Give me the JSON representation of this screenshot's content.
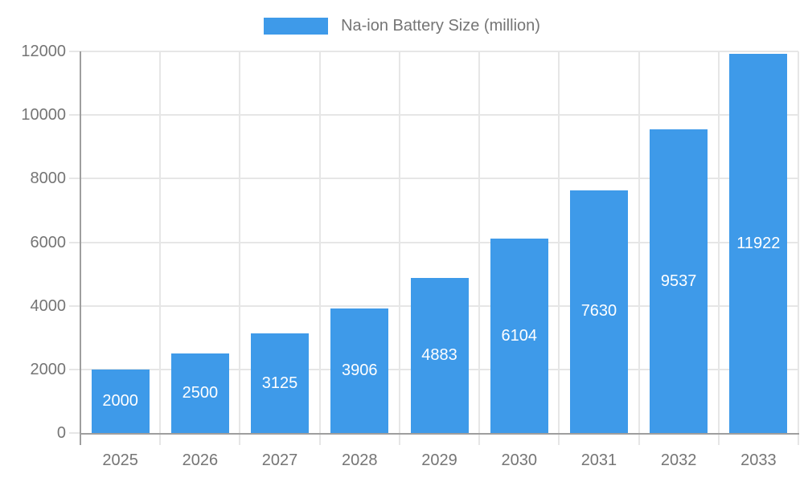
{
  "chart_data": {
    "type": "bar",
    "categories": [
      "2025",
      "2026",
      "2027",
      "2028",
      "2029",
      "2030",
      "2031",
      "2032",
      "2033"
    ],
    "series": [
      {
        "name": "Na-ion Battery Size (million)",
        "values": [
          2000,
          2500,
          3125,
          3906,
          4883,
          6104,
          7630,
          9537,
          11922
        ]
      }
    ],
    "value_labels": [
      "2000",
      "2500",
      "3125",
      "3906",
      "4883",
      "6104",
      "7630",
      "9537",
      "11922"
    ],
    "value_label_position": "inside-center",
    "legend_position": "top",
    "xlabel": "",
    "ylabel": "",
    "ylim": [
      0,
      12000
    ],
    "yticks": [
      0,
      2000,
      4000,
      6000,
      8000,
      10000,
      12000
    ],
    "grid": true,
    "colors": {
      "series": "#3E9AE9",
      "axis": "#9E9E9E",
      "grid": "#E6E6E6",
      "tick_text": "#757575",
      "value_label_text": "#FFFFFF",
      "background": "#FFFFFF"
    }
  }
}
